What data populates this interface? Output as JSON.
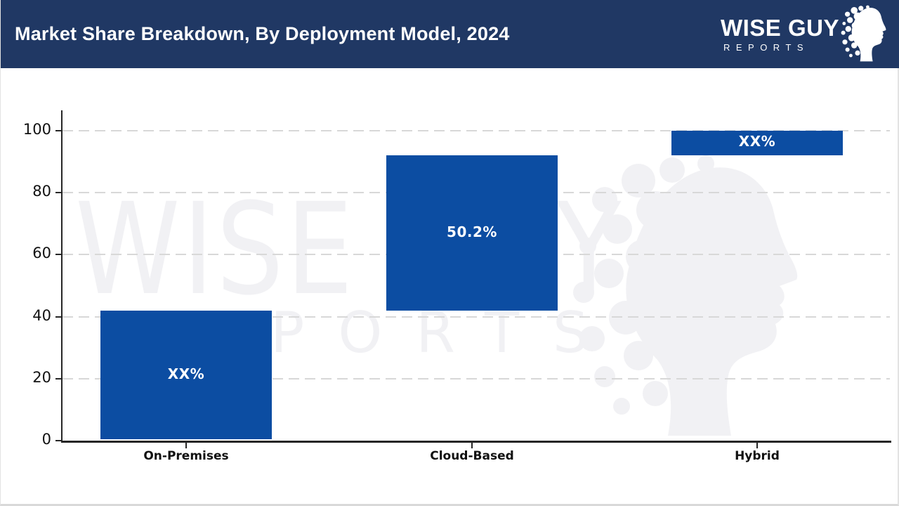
{
  "header": {
    "title": "Market Share Breakdown, By Deployment Model, 2024",
    "logo": {
      "name": "WISE GUY",
      "tagline": "REPORTS"
    }
  },
  "watermark": {
    "name": "WISE GUY",
    "tagline": "REPORTS"
  },
  "chart_data": {
    "type": "bar",
    "subtype": "stacked-waterfall",
    "title": "Market Share Breakdown, By Deployment Model, 2024",
    "categories": [
      "On-Premises",
      "Cloud-Based",
      "Hybrid"
    ],
    "bars": [
      {
        "category": "On-Premises",
        "start": 0,
        "end": 41.9,
        "value_label": "XX%"
      },
      {
        "category": "Cloud-Based",
        "start": 41.9,
        "end": 92.1,
        "value_label": "50.2%"
      },
      {
        "category": "Hybrid",
        "start": 92.1,
        "end": 100,
        "value_label": "XX%"
      }
    ],
    "xlabel": "",
    "ylabel": "",
    "ylim": [
      0,
      100
    ],
    "yticks": [
      0,
      20,
      40,
      60,
      80,
      100
    ],
    "grid": "horizontal-dashed",
    "legend": "none",
    "colors": {
      "bar": "#0c4da2",
      "bar_label": "#ffffff",
      "header_bg": "#203864",
      "header_text": "#ffffff",
      "grid": "#d8d8d8",
      "axis": "#262626",
      "watermark": "#f1f1f4"
    }
  }
}
